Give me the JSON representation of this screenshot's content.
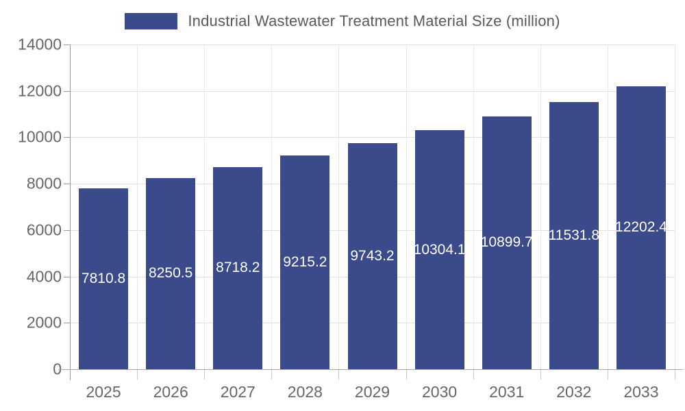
{
  "chart_data": {
    "type": "bar",
    "title": "Industrial Wastewater Treatment Material Size (million)",
    "categories": [
      "2025",
      "2026",
      "2027",
      "2028",
      "2029",
      "2030",
      "2031",
      "2032",
      "2033"
    ],
    "values": [
      7810.8,
      8250.5,
      8718.2,
      9215.2,
      9743.2,
      10304.1,
      10899.7,
      11531.8,
      12202.4
    ],
    "xlabel": "",
    "ylabel": "",
    "ylim": [
      0,
      14000
    ],
    "y_ticks": [
      0,
      2000,
      4000,
      6000,
      8000,
      10000,
      12000,
      14000
    ],
    "grid": "on",
    "legend_position": "top",
    "bar_label_position": "inside-center",
    "colors": {
      "bar": "#3a4a8a",
      "bar_label_text": "#ffffff",
      "axis_text": "#666666",
      "legend_text": "#595959",
      "gridline": "#e0e0e0",
      "axis_line": "#999999",
      "background": "#ffffff"
    }
  }
}
